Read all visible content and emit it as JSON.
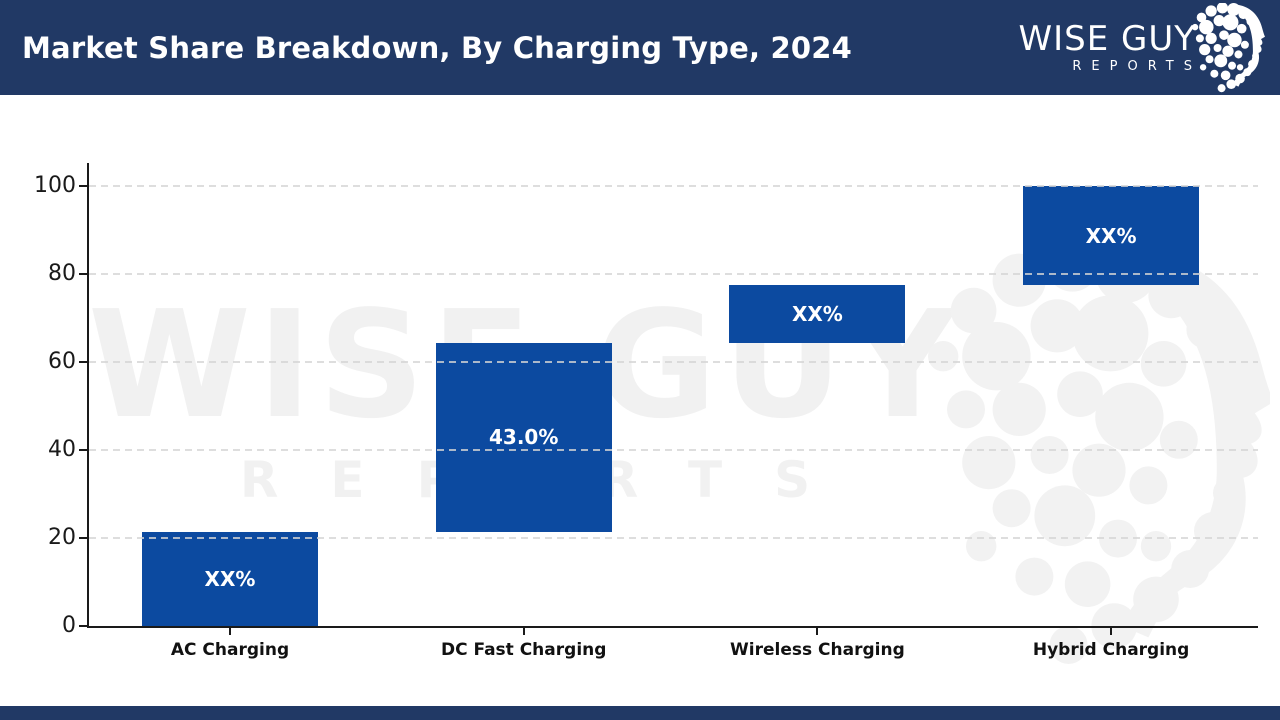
{
  "header": {
    "title": "Market Share Breakdown, By Charging Type, 2024",
    "background": "#213965",
    "logo": {
      "line1": "WISE GUY",
      "line2": "REPORTS"
    }
  },
  "watermark": {
    "line1": "WISE GUY",
    "line2": "REPORTS",
    "color": "#f1f1f1"
  },
  "chart_data": {
    "type": "bar",
    "subtype": "waterfall",
    "title": "Market Share Breakdown, By Charging Type, 2024",
    "categories": [
      "AC Charging",
      "DC Fast Charging",
      "Wireless Charging",
      "Hybrid Charging"
    ],
    "series": [
      {
        "name": "Market share (%)",
        "segments": [
          {
            "category": "AC Charging",
            "start": 0,
            "end": 21.4,
            "value": 21.4,
            "label": "XX%"
          },
          {
            "category": "DC Fast Charging",
            "start": 21.4,
            "end": 64.4,
            "value": 43.0,
            "label": "43.0%"
          },
          {
            "category": "Wireless Charging",
            "start": 64.4,
            "end": 77.4,
            "value": 13.0,
            "label": "XX%"
          },
          {
            "category": "Hybrid Charging",
            "start": 77.4,
            "end": 100,
            "value": 22.6,
            "label": "XX%"
          }
        ]
      }
    ],
    "xlabel": "",
    "ylabel": "",
    "ylim": [
      0,
      105
    ],
    "yticks": [
      0,
      20,
      40,
      60,
      80,
      100
    ],
    "grid": "horizontal-dashed",
    "legend": "none",
    "bar_color": "#0C4AA0",
    "bar_label_color": "#ffffff",
    "gridline_color": "#d5d5d5",
    "axis_color": "#1a1a1a"
  },
  "footer": {
    "background": "#213965"
  }
}
